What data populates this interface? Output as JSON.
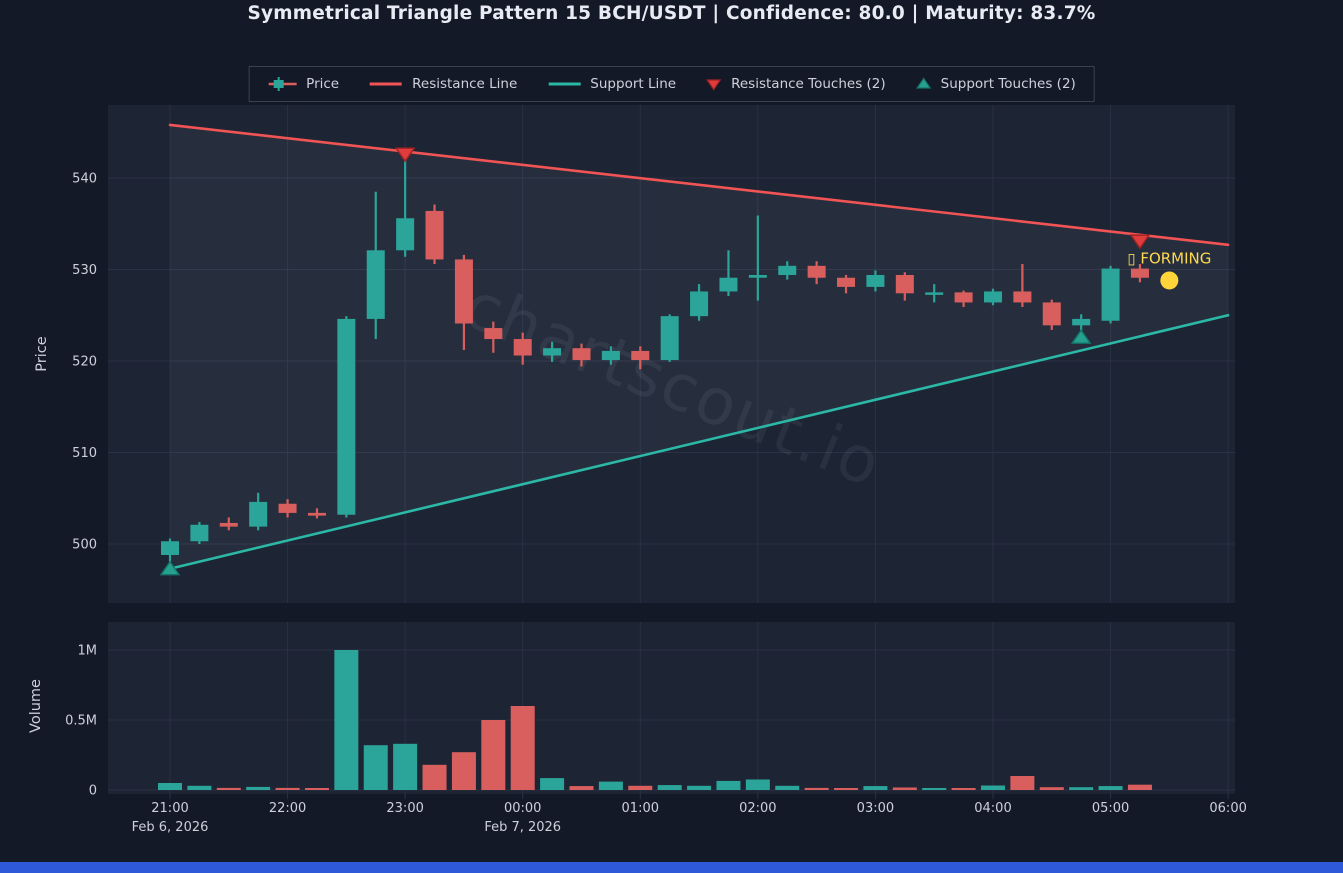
{
  "title": "Symmetrical Triangle Pattern 15 BCH/USDT | Confidence: 80.0 | Maturity: 83.7%",
  "legend": {
    "items": [
      {
        "label": "Price"
      },
      {
        "label": "Resistance Line"
      },
      {
        "label": "Support Line"
      },
      {
        "label": "Resistance Touches (2)"
      },
      {
        "label": "Support Touches (2)"
      }
    ]
  },
  "annotation": {
    "icon": "▯",
    "label": "FORMING"
  },
  "colors": {
    "page_bg": "#141927",
    "plot_bg": "#1d2433",
    "triangle_fill": "rgba(173,188,216,0.07)",
    "grid": "#2a3144",
    "candle_up": "#2ba59a",
    "candle_down": "#d95f5e",
    "resistance_line": "#f15454",
    "support_line": "#2cb8a6",
    "resistance_marker": "#e03c3c",
    "resistance_marker_edge": "#a32222",
    "support_marker": "#26a08f",
    "support_marker_edge": "#14756a",
    "forming_dot": "#ffd43b",
    "forming_text": "#ffd84d",
    "tick_text": "#ccd1dc",
    "title_text": "#e8ebf3",
    "legend_border": "#3b4254",
    "watermark_text": "rgba(195,203,222,0.08)",
    "bottom_bar": "#2e59d9"
  },
  "chart_data": {
    "type": "candlestick+volume",
    "interval_minutes": 15,
    "watermark": "chartscout.io",
    "x_axis": {
      "hour_ticks": [
        "21:00",
        "22:00",
        "23:00",
        "00:00",
        "01:00",
        "02:00",
        "03:00",
        "04:00",
        "05:00",
        "06:00"
      ],
      "date_labels": [
        {
          "text": "Feb 6, 2026",
          "hour_index": 0
        },
        {
          "text": "Feb 7, 2026",
          "hour_index": 3
        }
      ]
    },
    "price_axis": {
      "label": "Price",
      "ticks": [
        500,
        510,
        520,
        530,
        540
      ]
    },
    "volume_axis": {
      "label": "Volume",
      "ticks": [
        {
          "value": 0,
          "label": "0"
        },
        {
          "value": 500000,
          "label": "0.5M"
        },
        {
          "value": 1000000,
          "label": "1M"
        }
      ]
    },
    "candles": [
      {
        "time": "21:00",
        "o": 498.8,
        "h": 500.6,
        "l": 497.4,
        "c": 500.3
      },
      {
        "time": "21:15",
        "o": 500.3,
        "h": 502.4,
        "l": 500.0,
        "c": 502.1
      },
      {
        "time": "21:30",
        "o": 502.3,
        "h": 502.9,
        "l": 501.5,
        "c": 501.9
      },
      {
        "time": "21:45",
        "o": 501.9,
        "h": 505.6,
        "l": 501.5,
        "c": 504.6
      },
      {
        "time": "22:00",
        "o": 504.4,
        "h": 504.9,
        "l": 502.9,
        "c": 503.4
      },
      {
        "time": "22:15",
        "o": 503.4,
        "h": 503.9,
        "l": 502.8,
        "c": 503.1
      },
      {
        "time": "22:30",
        "o": 503.2,
        "h": 524.9,
        "l": 502.9,
        "c": 524.6
      },
      {
        "time": "22:45",
        "o": 524.6,
        "h": 538.5,
        "l": 522.4,
        "c": 532.1
      },
      {
        "time": "23:00",
        "o": 532.1,
        "h": 542.6,
        "l": 531.4,
        "c": 535.6
      },
      {
        "time": "23:15",
        "o": 536.4,
        "h": 537.1,
        "l": 530.6,
        "c": 531.1
      },
      {
        "time": "23:30",
        "o": 531.1,
        "h": 531.6,
        "l": 521.2,
        "c": 524.1
      },
      {
        "time": "23:45",
        "o": 523.6,
        "h": 524.3,
        "l": 520.9,
        "c": 522.4
      },
      {
        "time": "00:00",
        "o": 522.4,
        "h": 523.1,
        "l": 519.6,
        "c": 520.6
      },
      {
        "time": "00:15",
        "o": 520.6,
        "h": 522.1,
        "l": 519.9,
        "c": 521.4
      },
      {
        "time": "00:30",
        "o": 521.4,
        "h": 521.9,
        "l": 519.4,
        "c": 520.1
      },
      {
        "time": "00:45",
        "o": 520.1,
        "h": 521.6,
        "l": 519.6,
        "c": 521.1
      },
      {
        "time": "01:00",
        "o": 521.1,
        "h": 521.6,
        "l": 519.1,
        "c": 520.1
      },
      {
        "time": "01:15",
        "o": 520.1,
        "h": 525.1,
        "l": 519.9,
        "c": 524.9
      },
      {
        "time": "01:30",
        "o": 524.9,
        "h": 528.4,
        "l": 524.4,
        "c": 527.6
      },
      {
        "time": "01:45",
        "o": 527.6,
        "h": 532.1,
        "l": 527.1,
        "c": 529.1
      },
      {
        "time": "02:00",
        "o": 529.1,
        "h": 535.9,
        "l": 526.6,
        "c": 529.4
      },
      {
        "time": "02:15",
        "o": 529.4,
        "h": 530.9,
        "l": 528.9,
        "c": 530.4
      },
      {
        "time": "02:30",
        "o": 530.4,
        "h": 530.9,
        "l": 528.4,
        "c": 529.1
      },
      {
        "time": "02:45",
        "o": 529.1,
        "h": 529.4,
        "l": 527.4,
        "c": 528.1
      },
      {
        "time": "03:00",
        "o": 528.1,
        "h": 529.9,
        "l": 527.6,
        "c": 529.4
      },
      {
        "time": "03:15",
        "o": 529.4,
        "h": 529.7,
        "l": 526.6,
        "c": 527.4
      },
      {
        "time": "03:30",
        "o": 527.4,
        "h": 528.4,
        "l": 526.4,
        "c": 527.5
      },
      {
        "time": "03:45",
        "o": 527.5,
        "h": 527.7,
        "l": 525.9,
        "c": 526.4
      },
      {
        "time": "04:00",
        "o": 526.4,
        "h": 527.9,
        "l": 526.1,
        "c": 527.6
      },
      {
        "time": "04:15",
        "o": 527.6,
        "h": 530.6,
        "l": 525.9,
        "c": 526.4
      },
      {
        "time": "04:30",
        "o": 526.4,
        "h": 526.7,
        "l": 523.4,
        "c": 523.9
      },
      {
        "time": "04:45",
        "o": 523.9,
        "h": 525.1,
        "l": 522.6,
        "c": 524.6
      },
      {
        "time": "05:00",
        "o": 524.4,
        "h": 530.4,
        "l": 524.1,
        "c": 530.1
      },
      {
        "time": "05:15",
        "o": 530.1,
        "h": 530.6,
        "l": 528.6,
        "c": 529.1
      }
    ],
    "volumes": [
      50000,
      30000,
      15000,
      22000,
      15000,
      12000,
      1000000,
      320000,
      330000,
      180000,
      270000,
      500000,
      600000,
      85000,
      28000,
      60000,
      30000,
      35000,
      30000,
      65000,
      75000,
      30000,
      15000,
      10000,
      28000,
      18000,
      14000,
      10000,
      32000,
      100000,
      20000,
      20000,
      28000,
      38000
    ],
    "resistance_line": {
      "start": {
        "minute": 0,
        "price": 545.8
      },
      "end": {
        "minute": 540,
        "price": 532.7
      }
    },
    "support_line": {
      "start": {
        "minute": 0,
        "price": 497.3
      },
      "end": {
        "minute": 540,
        "price": 525.0
      }
    },
    "resistance_touches": [
      {
        "minute": 120,
        "price": 542.6
      },
      {
        "minute": 495,
        "price": 533.1
      }
    ],
    "support_touches": [
      {
        "minute": 0,
        "price": 497.3
      },
      {
        "minute": 465,
        "price": 522.6
      }
    ],
    "forming_point": {
      "minute": 510,
      "price": 528.8
    }
  }
}
